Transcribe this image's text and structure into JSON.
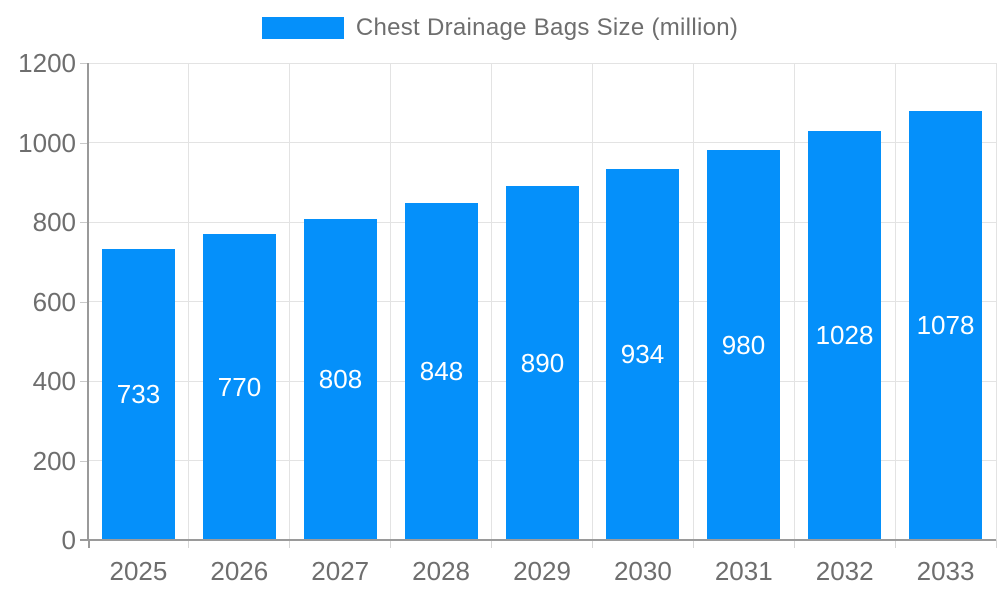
{
  "chart_data": {
    "type": "bar",
    "title": "Chest Drainage Bags Size (million)",
    "legend": [
      {
        "label": "Chest Drainage Bags Size (million)",
        "position": "top"
      }
    ],
    "categories": [
      "2025",
      "2026",
      "2027",
      "2028",
      "2029",
      "2030",
      "2031",
      "2032",
      "2033"
    ],
    "values": [
      733,
      770,
      808,
      848,
      890,
      934,
      980,
      1028,
      1078
    ],
    "value_labels_shown_inside_bars": true,
    "xlabel": "",
    "ylabel": "",
    "ylim": [
      0,
      1200
    ],
    "yticks": [
      0,
      200,
      400,
      600,
      800,
      1000,
      1200
    ],
    "grid": true,
    "colors": {
      "bar": "#0590fa",
      "value_label": "#ffffff",
      "axis_line": "#9a9a9a",
      "gridline": "#e3e3e3",
      "tick_text": "#6e6e6e",
      "legend_text": "#6e6e6e",
      "background": "#ffffff"
    }
  }
}
